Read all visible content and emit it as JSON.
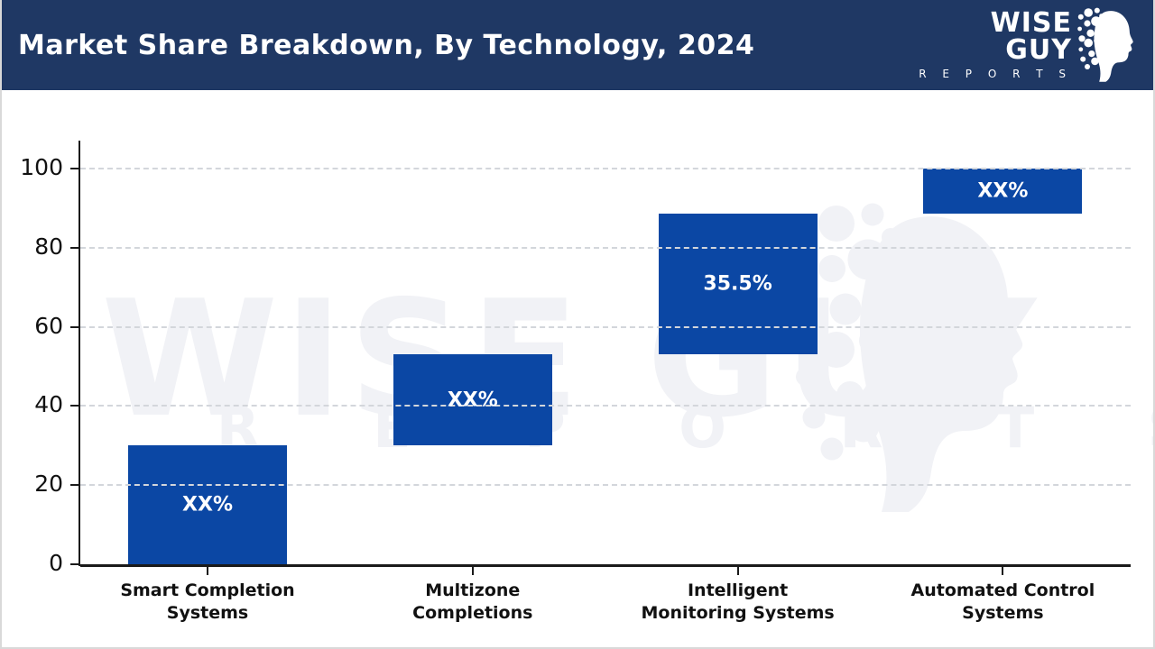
{
  "header": {
    "title": "Market Share Breakdown, By Technology, 2024",
    "logo_line1": "WISE GUY",
    "logo_line2": "R E P O R T S"
  },
  "watermark": {
    "line1": "WISE GUY",
    "line2": "R E P O R T S"
  },
  "colors": {
    "header_bg": "#1f3864",
    "bar": "#0b47a4",
    "bar_label_text": "#ffffff",
    "axis": "#1a1a1a",
    "gridline": "#d3d6db",
    "watermark": "#f1f2f6",
    "tick_text": "#111111"
  },
  "chart_data": {
    "type": "bar",
    "subtype": "waterfall",
    "title": "Market Share Breakdown, By Technology, 2024",
    "xlabel": "",
    "ylabel": "",
    "ylim": [
      0,
      106
    ],
    "yticks": [
      0,
      20,
      40,
      60,
      80,
      100
    ],
    "grid": "horizontal-dashed",
    "legend": "none",
    "categories": [
      "Smart Completion\nSystems",
      "Multizone\nCompletions",
      "Intelligent\nMonitoring Systems",
      "Automated Control\nSystems"
    ],
    "segments": [
      {
        "name": "Smart Completion Systems",
        "start": 0,
        "end": 30,
        "value_label": "XX%"
      },
      {
        "name": "Multizone Completions",
        "start": 30,
        "end": 53,
        "value_label": "XX%"
      },
      {
        "name": "Intelligent Monitoring Systems",
        "start": 53,
        "end": 88.5,
        "value_label": "35.5%"
      },
      {
        "name": "Automated Control Systems",
        "start": 88.5,
        "end": 100,
        "value_label": "XX%"
      }
    ]
  }
}
